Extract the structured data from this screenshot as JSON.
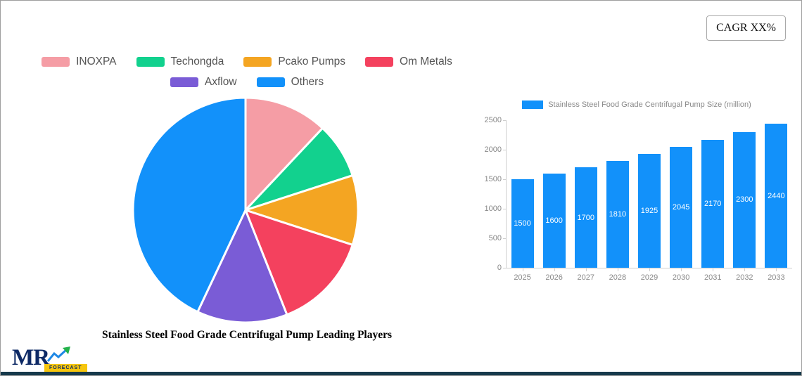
{
  "badges": {
    "cagr": "CAGR XX%"
  },
  "logo": {
    "text": "MR",
    "badge": "FORECAST"
  },
  "chart_data": [
    {
      "type": "pie",
      "title": "Stainless Steel Food Grade Centrifugal Pump Leading Players",
      "legend_position": "top",
      "start_angle_deg": 0,
      "segments": [
        {
          "label": "INOXPA",
          "value": 12,
          "color": "#F59DA5"
        },
        {
          "label": "Techongda",
          "value": 8,
          "color": "#12D18E"
        },
        {
          "label": "Pcako Pumps",
          "value": 10,
          "color": "#F4A522"
        },
        {
          "label": "Om Metals",
          "value": 14,
          "color": "#F4415E"
        },
        {
          "label": "Axflow",
          "value": 13,
          "color": "#7A5CD6"
        },
        {
          "label": "Others",
          "value": 43,
          "color": "#1291FA"
        }
      ]
    },
    {
      "type": "bar",
      "legend": "Stainless Steel Food Grade Centrifugal Pump Size (million)",
      "categories": [
        "2025",
        "2026",
        "2027",
        "2028",
        "2029",
        "2030",
        "2031",
        "2032",
        "2033"
      ],
      "values": [
        1500,
        1600,
        1700,
        1810,
        1925,
        2045,
        2170,
        2300,
        2440
      ],
      "bar_color": "#1291FA",
      "ylim": [
        0,
        2500
      ],
      "yticks": [
        0,
        500,
        1000,
        1500,
        2000,
        2500
      ],
      "grid": false,
      "value_labels": "inside-bar-white"
    }
  ]
}
